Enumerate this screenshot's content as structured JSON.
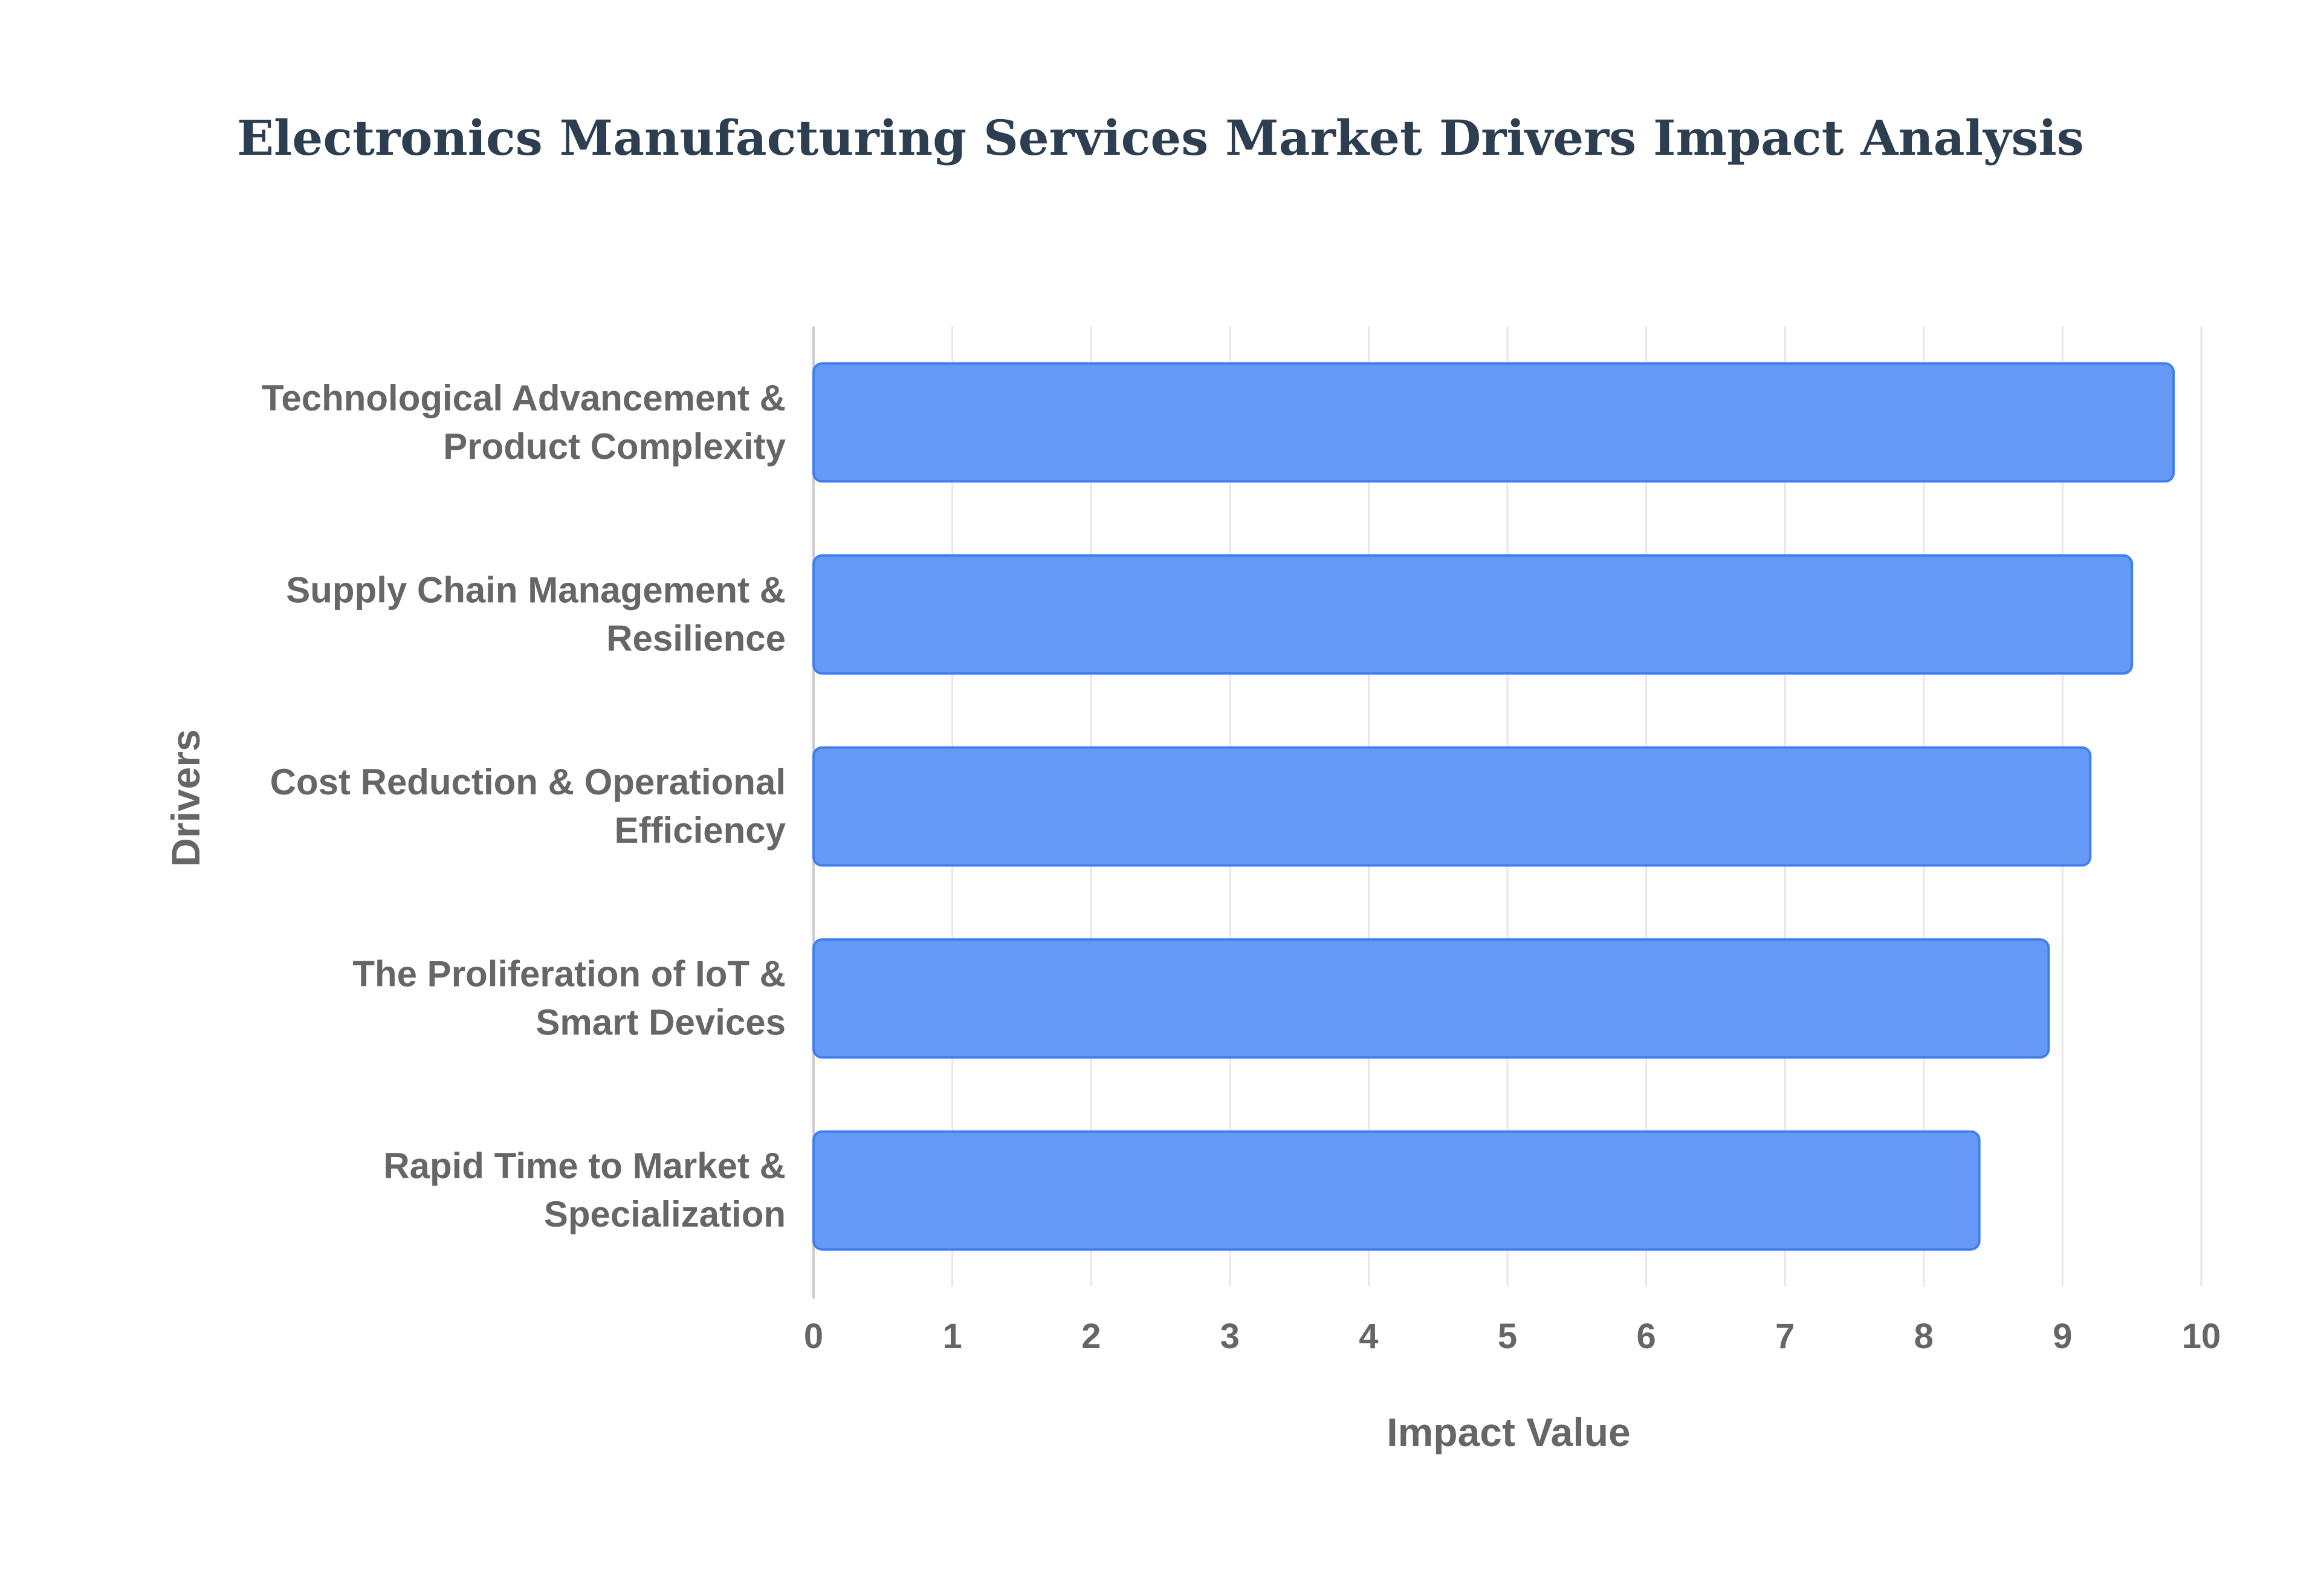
{
  "chart_data": {
    "type": "bar",
    "orientation": "horizontal",
    "title": "Electronics Manufacturing Services Market Drivers Impact Analysis",
    "xlabel": "Impact Value",
    "ylabel": "Drivers",
    "xlim": [
      0,
      10
    ],
    "xticks": [
      "0",
      "1",
      "2",
      "3",
      "4",
      "5",
      "6",
      "7",
      "8",
      "9",
      "10"
    ],
    "grid": true,
    "categories": [
      [
        "Technological Advancement &",
        "Product Complexity"
      ],
      [
        "Supply Chain Management &",
        "Resilience"
      ],
      [
        "Cost Reduction & Operational",
        "Efficiency"
      ],
      [
        "The Proliferation of IoT &",
        "Smart Devices"
      ],
      [
        "Rapid Time to Market &",
        "Specialization"
      ]
    ],
    "values": [
      9.8,
      9.5,
      9.2,
      8.9,
      8.4
    ]
  },
  "colors": {
    "bar_fill": "#6699f5",
    "bar_stroke": "#3f7fed",
    "title": "#2c3e50",
    "label": "#666666",
    "grid": "#e6e6e6",
    "axis": "#cccccc"
  }
}
